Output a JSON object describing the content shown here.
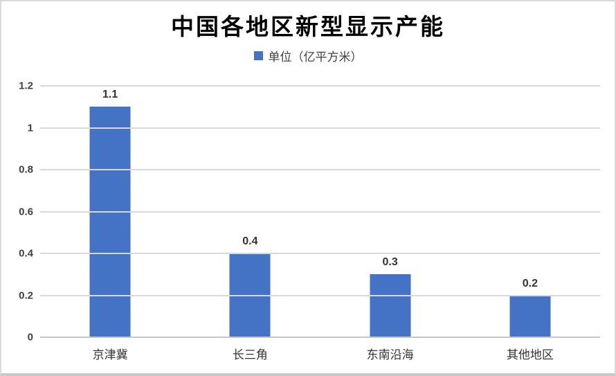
{
  "title": "中国各地区新型显示产能",
  "legend": {
    "label": "单位（亿平方米）",
    "marker_color": "#4472c4"
  },
  "chart_data": {
    "type": "bar",
    "title": "中国各地区新型显示产能",
    "series_name": "单位（亿平方米）",
    "categories": [
      "京津冀",
      "长三角",
      "东南沿海",
      "其他地区"
    ],
    "values": [
      1.1,
      0.4,
      0.3,
      0.2
    ],
    "data_labels": [
      "1.1",
      "0.4",
      "0.3",
      "0.2"
    ],
    "xlabel": "",
    "ylabel": "",
    "ylim": [
      0,
      1.2
    ],
    "ytick_interval": 0.2,
    "yticks": [
      "1.2",
      "1",
      "0.8",
      "0.6",
      "0.4",
      "0.2",
      "0"
    ],
    "grid": "horizontal",
    "legend_position": "top",
    "bar_color": "#4472c4",
    "gridline_color": "#d9d9d9",
    "tick_label_color": "#404040",
    "data_label_color": "#333333",
    "background_color": "#ffffff"
  }
}
